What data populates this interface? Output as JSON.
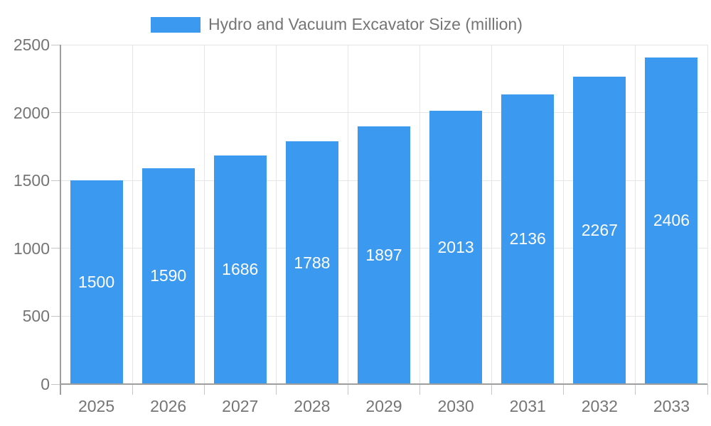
{
  "chart_data": {
    "type": "bar",
    "title": "Hydro and Vacuum Excavator Size (million)",
    "categories": [
      "2025",
      "2026",
      "2027",
      "2028",
      "2029",
      "2030",
      "2031",
      "2032",
      "2033"
    ],
    "values": [
      1500,
      1590,
      1686,
      1788,
      1897,
      2013,
      2136,
      2267,
      2406
    ],
    "xlabel": "",
    "ylabel": "",
    "ylim": [
      0,
      2500
    ],
    "yticks": [
      0,
      500,
      1000,
      1500,
      2000,
      2500
    ],
    "grid": true,
    "legend_position": "top",
    "colors": {
      "bar": "#3B99F0",
      "bar_label": "#FFFFFF",
      "axis_text": "#757575",
      "grid_line": "#E6E6E6",
      "tick_mark": "#C6C6C6",
      "axis_line": "#9E9E9E",
      "background": "#FFFFFF"
    }
  }
}
